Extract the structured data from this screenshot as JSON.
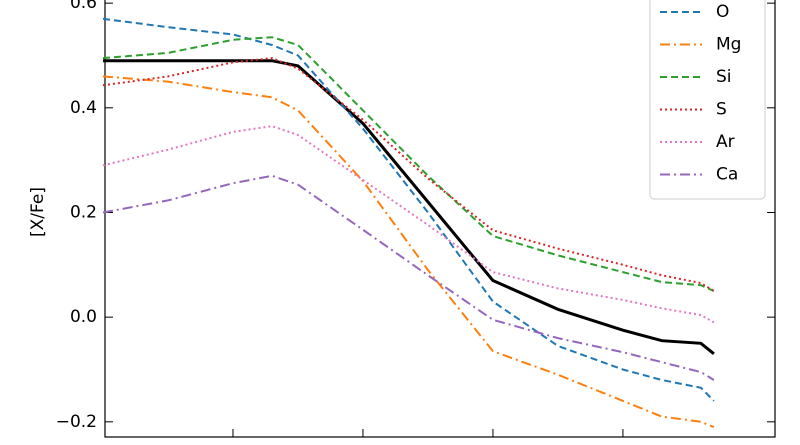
{
  "chart_data": {
    "type": "line",
    "y_label": "[X/Fe]",
    "x": [
      0,
      0.5,
      1,
      1.3,
      1.5,
      2,
      2.5,
      3,
      3.5,
      4,
      4.3,
      4.6,
      4.7
    ],
    "xlim": [
      0,
      5.17
    ],
    "xticks": [
      1,
      2,
      3,
      4
    ],
    "ylim": [
      -0.229,
      0.606
    ],
    "yticks": [
      -0.2,
      {
        "value": 0,
        "label": "0.0"
      },
      0.2,
      0.4,
      0.6
    ],
    "ytick_labels_override": null,
    "legend": "upper right",
    "series": [
      {
        "color": "#000000",
        "linestyle": "solid",
        "values": [
          0.49,
          0.49,
          0.49,
          0.49,
          0.48,
          0.37,
          0.22,
          0.07,
          0.015,
          -0.025,
          -0.045,
          -0.05,
          -0.07
        ]
      },
      {
        "name": "O",
        "color": "#1f77b4",
        "linestyle": "dashed",
        "values": [
          0.57,
          0.554,
          0.54,
          0.52,
          0.5,
          0.36,
          0.2,
          0.03,
          -0.055,
          -0.1,
          -0.12,
          -0.135,
          -0.16
        ]
      },
      {
        "name": "Mg",
        "color": "#ff7f0e",
        "linestyle": "dashdot",
        "values": [
          0.46,
          0.45,
          0.43,
          0.42,
          0.395,
          0.26,
          0.09,
          -0.065,
          -0.11,
          -0.16,
          -0.19,
          -0.2,
          -0.21
        ]
      },
      {
        "name": "Si",
        "color": "#2ca02c",
        "linestyle": "dashed",
        "values": [
          0.495,
          0.505,
          0.53,
          0.535,
          0.52,
          0.395,
          0.27,
          0.155,
          0.118,
          0.086,
          0.067,
          0.061,
          0.05
        ]
      },
      {
        "name": "S",
        "color": "#d62728",
        "linestyle": "dotted",
        "values": [
          0.443,
          0.46,
          0.487,
          0.495,
          0.475,
          0.377,
          0.265,
          0.166,
          0.131,
          0.1,
          0.08,
          0.065,
          0.05
        ]
      },
      {
        "name": "Ar",
        "color": "#e377c2",
        "linestyle": "dotted",
        "values": [
          0.29,
          0.32,
          0.354,
          0.365,
          0.348,
          0.262,
          0.176,
          0.086,
          0.055,
          0.033,
          0.017,
          0.004,
          -0.01
        ]
      },
      {
        "name": "Ca",
        "color": "#9467bd",
        "linestyle": "dashdot",
        "values": [
          0.2,
          0.223,
          0.256,
          0.27,
          0.253,
          0.167,
          0.08,
          -0.005,
          -0.04,
          -0.067,
          -0.086,
          -0.105,
          -0.12
        ]
      }
    ]
  }
}
